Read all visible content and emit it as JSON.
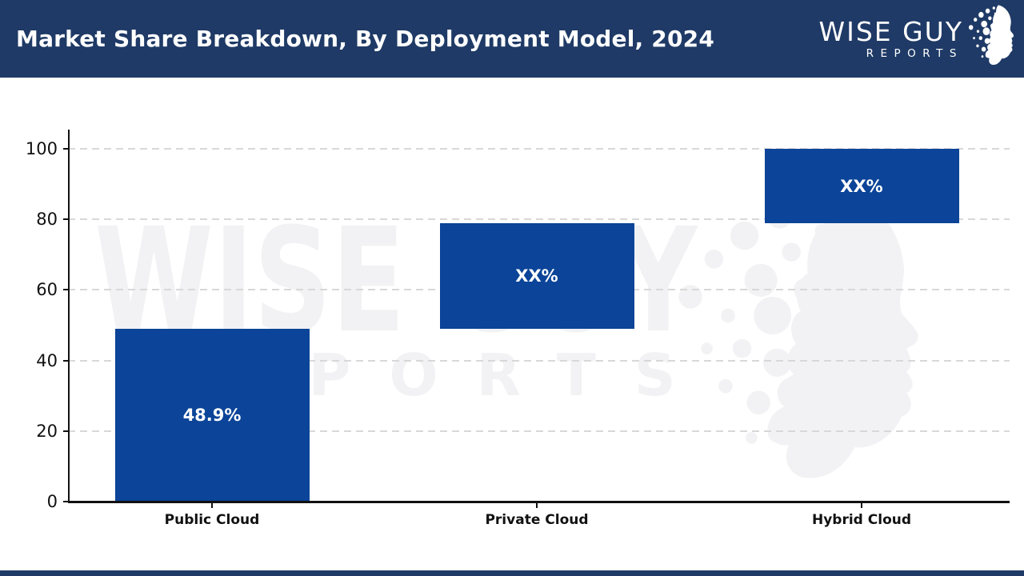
{
  "header": {
    "title": "Market Share Breakdown, By Deployment Model, 2024",
    "logo": {
      "line1": "WISE GUY",
      "line2": "REPORTS"
    }
  },
  "watermark": {
    "line1": "WISE GUY",
    "line2": "REPORTS"
  },
  "colors": {
    "header_bg": "#1f3a66",
    "bar_blue": "#0b4498",
    "gridline": "#d8d8d8",
    "axis": "#111111",
    "bar_label": "#ffffff",
    "watermark": "#f2f2f4"
  },
  "chart_data": {
    "type": "bar",
    "variant": "waterfall",
    "title": "Market Share Breakdown, By Deployment Model, 2024",
    "categories": [
      "Public Cloud",
      "Private Cloud",
      "Hybrid Cloud"
    ],
    "segments": [
      {
        "category": "Public Cloud",
        "start": 0,
        "end": 48.9,
        "label": "48.9%"
      },
      {
        "category": "Private Cloud",
        "start": 48.9,
        "end": 78.9,
        "label": "XX%"
      },
      {
        "category": "Hybrid Cloud",
        "start": 78.9,
        "end": 100,
        "label": "XX%"
      }
    ],
    "ylim": [
      0,
      100
    ],
    "yticks": [
      0,
      20,
      40,
      60,
      80,
      100
    ],
    "xlabel": "",
    "ylabel": "",
    "grid": "horizontal-dashed",
    "legend": "none"
  }
}
